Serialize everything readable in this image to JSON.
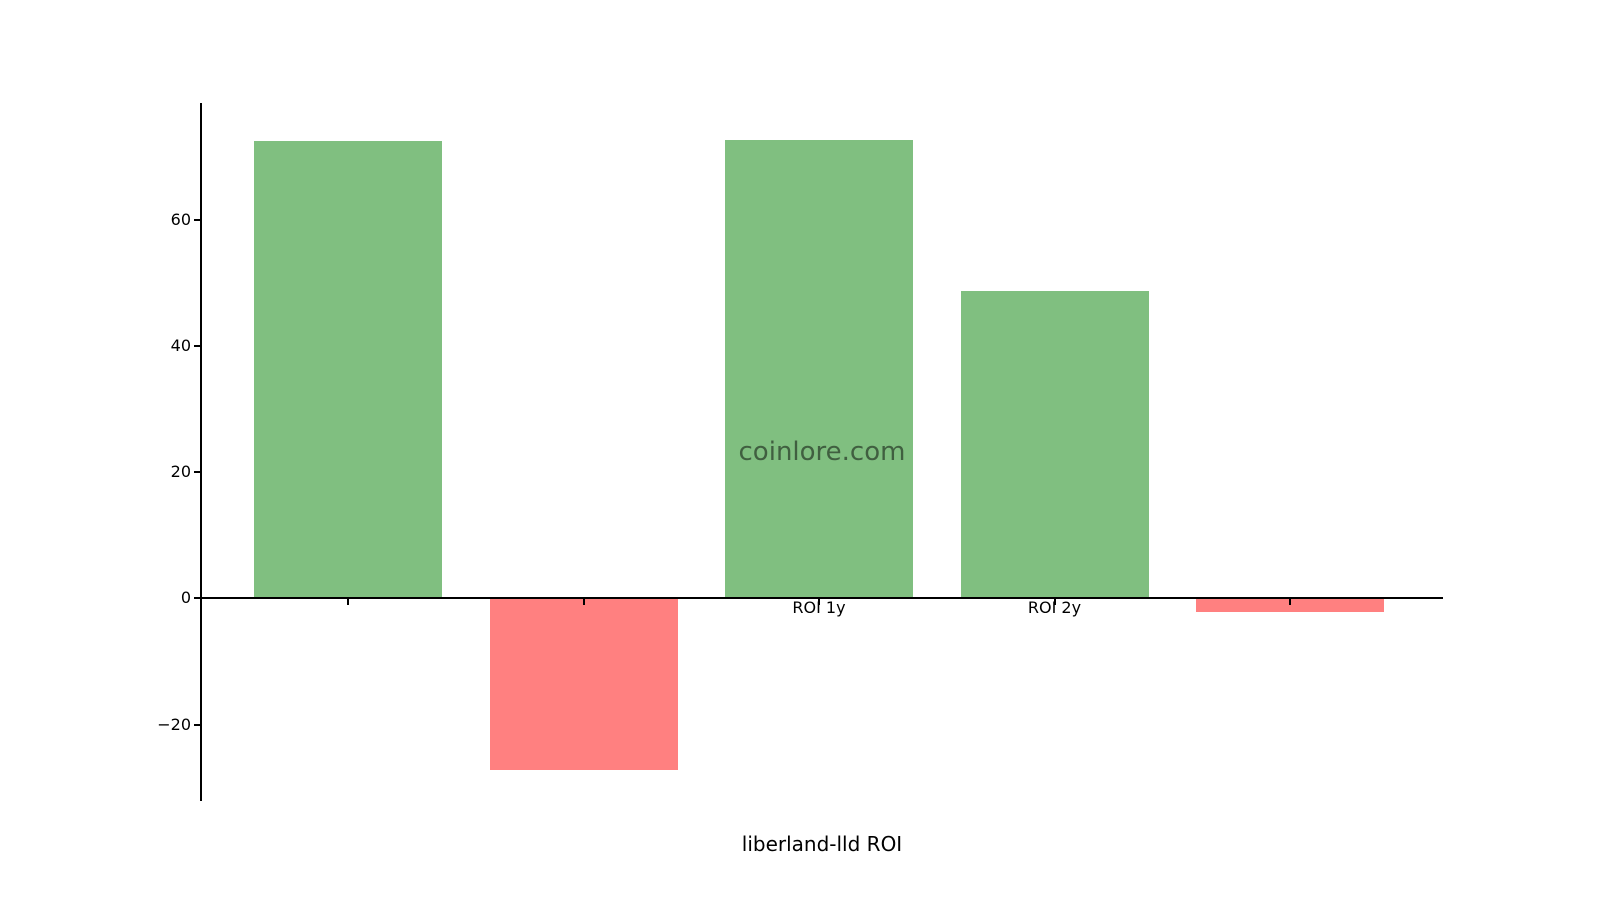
{
  "watermark": "coinlore.com",
  "chart_data": {
    "type": "bar",
    "title": "liberland-lld ROI",
    "title_position": "bottom",
    "categories": [
      "",
      "",
      "ROI 1y",
      "ROI 2y",
      ""
    ],
    "values": [
      72.5,
      -27.2,
      72.7,
      48.7,
      -2.1
    ],
    "bar_colors": [
      "#80bf80",
      "#ff8080",
      "#80bf80",
      "#80bf80",
      "#ff8080"
    ],
    "positive_color": "#80bf80",
    "negative_color": "#ff8080",
    "yticks": [
      60,
      40,
      20,
      0,
      -20
    ],
    "ylim": [
      -32.1,
      78.5
    ],
    "xlabel": "liberland-lld ROI",
    "ylabel": "",
    "grid": false,
    "legend": null,
    "axis_color": "#000000",
    "background_color": "#ffffff"
  }
}
